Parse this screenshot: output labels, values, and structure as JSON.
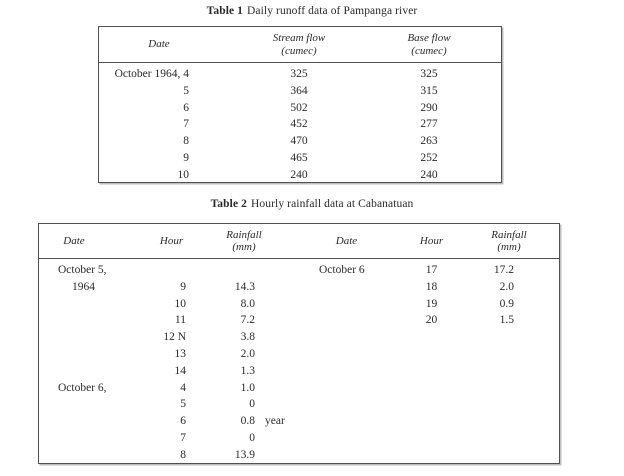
{
  "colors": {
    "background": "#ffffff",
    "text": "#2a2a2a",
    "border": "#4f4f55"
  },
  "table1": {
    "title_label": "Table 1",
    "title_text": "Daily runoff data of Pampanga river",
    "headers": [
      {
        "label": "Date",
        "sub": ""
      },
      {
        "label": "Stream flow",
        "sub": "(cumec)"
      },
      {
        "label": "Base flow",
        "sub": "(cumec)"
      }
    ],
    "rows": [
      {
        "date": "October 1964, 4",
        "stream": "325",
        "base": "325"
      },
      {
        "date": "5",
        "stream": "364",
        "base": "315"
      },
      {
        "date": "6",
        "stream": "502",
        "base": "290"
      },
      {
        "date": "7",
        "stream": "452",
        "base": "277"
      },
      {
        "date": "8",
        "stream": "470",
        "base": "263"
      },
      {
        "date": "9",
        "stream": "465",
        "base": "252"
      },
      {
        "date": "10",
        "stream": "240",
        "base": "240"
      }
    ]
  },
  "table2": {
    "title_label": "Table 2",
    "title_text": "Hourly rainfall data at Cabanatuan",
    "headers": [
      {
        "label": "Date",
        "sub": ""
      },
      {
        "label": "Hour",
        "sub": ""
      },
      {
        "label": "Rainfall",
        "sub": "(mm)"
      },
      {
        "label": "Date",
        "sub": ""
      },
      {
        "label": "Hour",
        "sub": ""
      },
      {
        "label": "Rainfall",
        "sub": "(mm)"
      }
    ],
    "rows": [
      {
        "date_l": "October 5,",
        "indent_l": false,
        "hour_l": "",
        "rain_l": "",
        "rain_l_note": "",
        "date_r": "October 6",
        "hour_r": "17",
        "rain_r": "17.2"
      },
      {
        "date_l": "1964",
        "indent_l": true,
        "hour_l": "9",
        "rain_l": "14.3",
        "rain_l_note": "",
        "date_r": "",
        "hour_r": "18",
        "rain_r": "2.0"
      },
      {
        "date_l": "",
        "indent_l": false,
        "hour_l": "10",
        "rain_l": "8.0",
        "rain_l_note": "",
        "date_r": "",
        "hour_r": "19",
        "rain_r": "0.9"
      },
      {
        "date_l": "",
        "indent_l": false,
        "hour_l": "11",
        "rain_l": "7.2",
        "rain_l_note": "",
        "date_r": "",
        "hour_r": "20",
        "rain_r": "1.5"
      },
      {
        "date_l": "",
        "indent_l": false,
        "hour_l": "12 N",
        "rain_l": "3.8",
        "rain_l_note": "",
        "date_r": "",
        "hour_r": "",
        "rain_r": ""
      },
      {
        "date_l": "",
        "indent_l": false,
        "hour_l": "13",
        "rain_l": "2.0",
        "rain_l_note": "",
        "date_r": "",
        "hour_r": "",
        "rain_r": ""
      },
      {
        "date_l": "",
        "indent_l": false,
        "hour_l": "14",
        "rain_l": "1.3",
        "rain_l_note": "",
        "date_r": "",
        "hour_r": "",
        "rain_r": ""
      },
      {
        "date_l": "October 6,",
        "indent_l": false,
        "hour_l": "4",
        "rain_l": "1.0",
        "rain_l_note": "",
        "date_r": "",
        "hour_r": "",
        "rain_r": ""
      },
      {
        "date_l": "",
        "indent_l": false,
        "hour_l": "5",
        "rain_l": "0",
        "rain_l_note": "",
        "date_r": "",
        "hour_r": "",
        "rain_r": ""
      },
      {
        "date_l": "",
        "indent_l": false,
        "hour_l": "6",
        "rain_l": "0.8",
        "rain_l_note": "year",
        "date_r": "",
        "hour_r": "",
        "rain_r": ""
      },
      {
        "date_l": "",
        "indent_l": false,
        "hour_l": "7",
        "rain_l": "0",
        "rain_l_note": "",
        "date_r": "",
        "hour_r": "",
        "rain_r": ""
      },
      {
        "date_l": "",
        "indent_l": false,
        "hour_l": "8",
        "rain_l": "13.9",
        "rain_l_note": "",
        "date_r": "",
        "hour_r": "",
        "rain_r": ""
      }
    ]
  }
}
